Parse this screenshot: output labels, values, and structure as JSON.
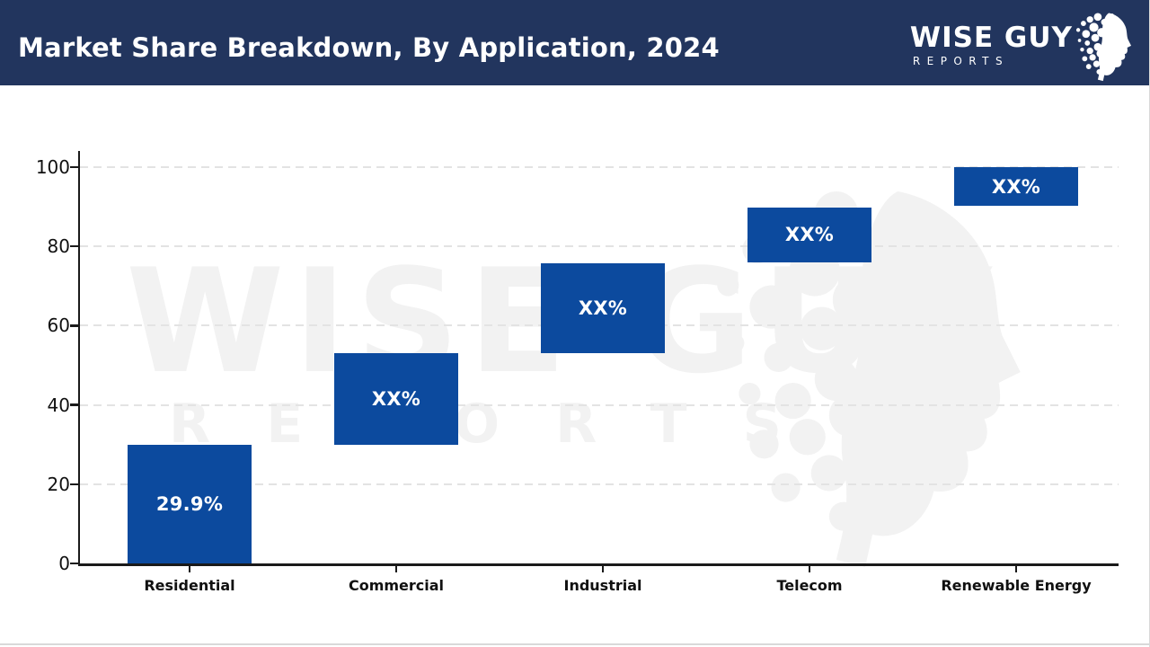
{
  "header": {
    "title": "Market Share Breakdown, By Application, 2024",
    "logo": {
      "line1": "WISE GUY",
      "line2": "REPORTS"
    }
  },
  "watermark": {
    "line1": "WISE GUY",
    "line2": "REPORTS"
  },
  "chart_data": {
    "type": "bar",
    "subtype": "waterfall",
    "title": "Market Share Breakdown, By Application, 2024",
    "categories": [
      "Residential",
      "Commercial",
      "Industrial",
      "Telecom",
      "Renewable Energy"
    ],
    "bars": [
      {
        "category": "Residential",
        "start": 0,
        "end": 29.9,
        "label": "29.9%"
      },
      {
        "category": "Commercial",
        "start": 29.9,
        "end": 53.0,
        "label": "XX%"
      },
      {
        "category": "Industrial",
        "start": 53.0,
        "end": 75.7,
        "label": "XX%"
      },
      {
        "category": "Telecom",
        "start": 76.0,
        "end": 89.8,
        "label": "XX%"
      },
      {
        "category": "Renewable Energy",
        "start": 90.2,
        "end": 100.0,
        "label": "XX%"
      }
    ],
    "xlabel": "",
    "ylabel": "",
    "ylim": [
      0,
      105
    ],
    "yticks": [
      0,
      20,
      40,
      60,
      80,
      100
    ],
    "grid": {
      "horizontal": true,
      "style": "dashed"
    },
    "legend": null,
    "bar_color": "#0c4a9e",
    "bar_label_color": "#ffffff"
  },
  "colors": {
    "header_bg": "#22355e",
    "bar": "#0c4a9e",
    "axis": "#1a1a1a",
    "grid": "#e3e3e3",
    "watermark": "#f2f2f2",
    "title_text": "#ffffff"
  }
}
